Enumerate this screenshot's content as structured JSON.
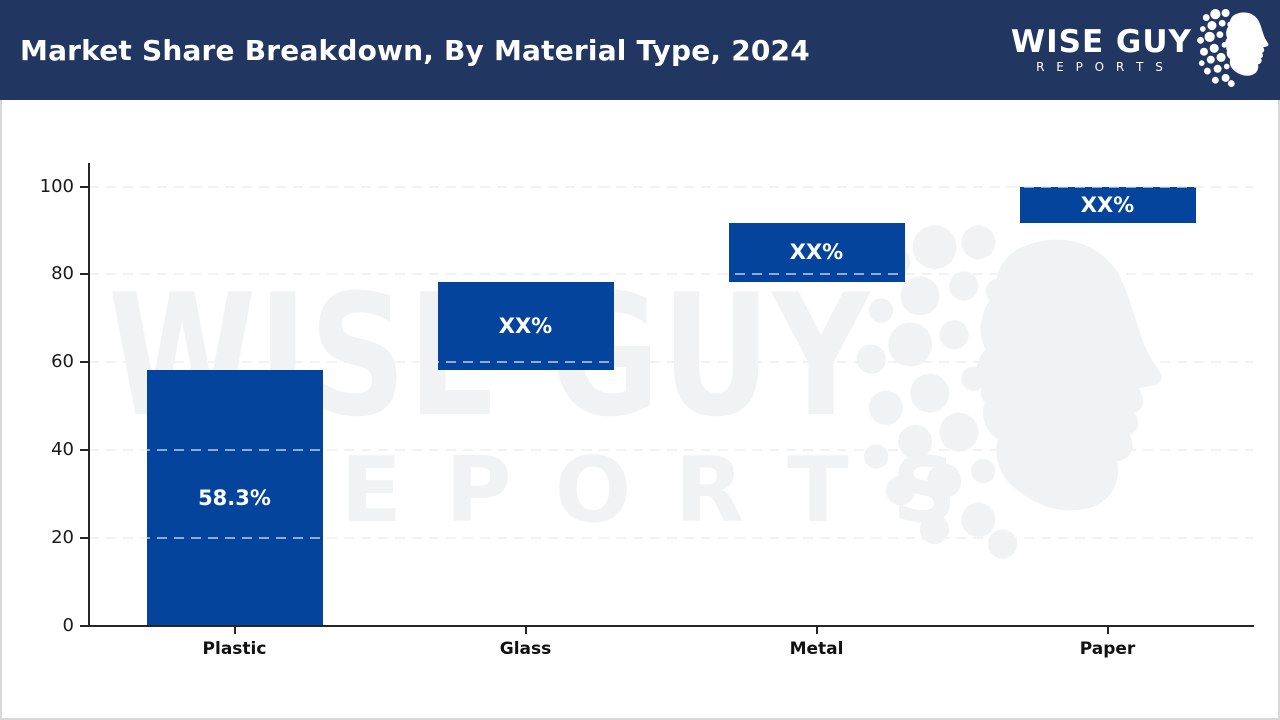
{
  "header": {
    "title": "Market Share Breakdown, By Material Type, 2024",
    "background_color": "#213761",
    "logo": {
      "wordmark": "WISE GUY",
      "reports": "R E P O R T S",
      "head_icon": "dotted-face-profile"
    }
  },
  "watermark": {
    "wordmark": "WISE GUY",
    "reports": "R E P O R T S",
    "head_icon": "dotted-face-profile",
    "color": "#f1f2f4"
  },
  "chart_data": {
    "type": "bar",
    "subtype": "waterfall",
    "title": "Market Share Breakdown, By Material Type, 2024",
    "categories": [
      "Plastic",
      "Glass",
      "Metal",
      "Paper"
    ],
    "segments": [
      {
        "category": "Plastic",
        "start": 0,
        "end": 58.3,
        "label": "58.3%"
      },
      {
        "category": "Glass",
        "start": 58.3,
        "end": 78.3,
        "label": "XX%"
      },
      {
        "category": "Metal",
        "start": 78.3,
        "end": 91.7,
        "label": "XX%"
      },
      {
        "category": "Paper",
        "start": 91.7,
        "end": 100,
        "label": "XX%"
      }
    ],
    "xlabel": "",
    "ylabel": "",
    "ylim": [
      0,
      105
    ],
    "y_ticks": [
      0,
      20,
      40,
      60,
      80,
      100
    ],
    "grid": "horizontal-dashed",
    "legend": "none",
    "bar_color": "#05449c",
    "bar_label_color": "#ffffff",
    "axis_color": "#262626",
    "gridline_color": "#e2e2e2"
  }
}
